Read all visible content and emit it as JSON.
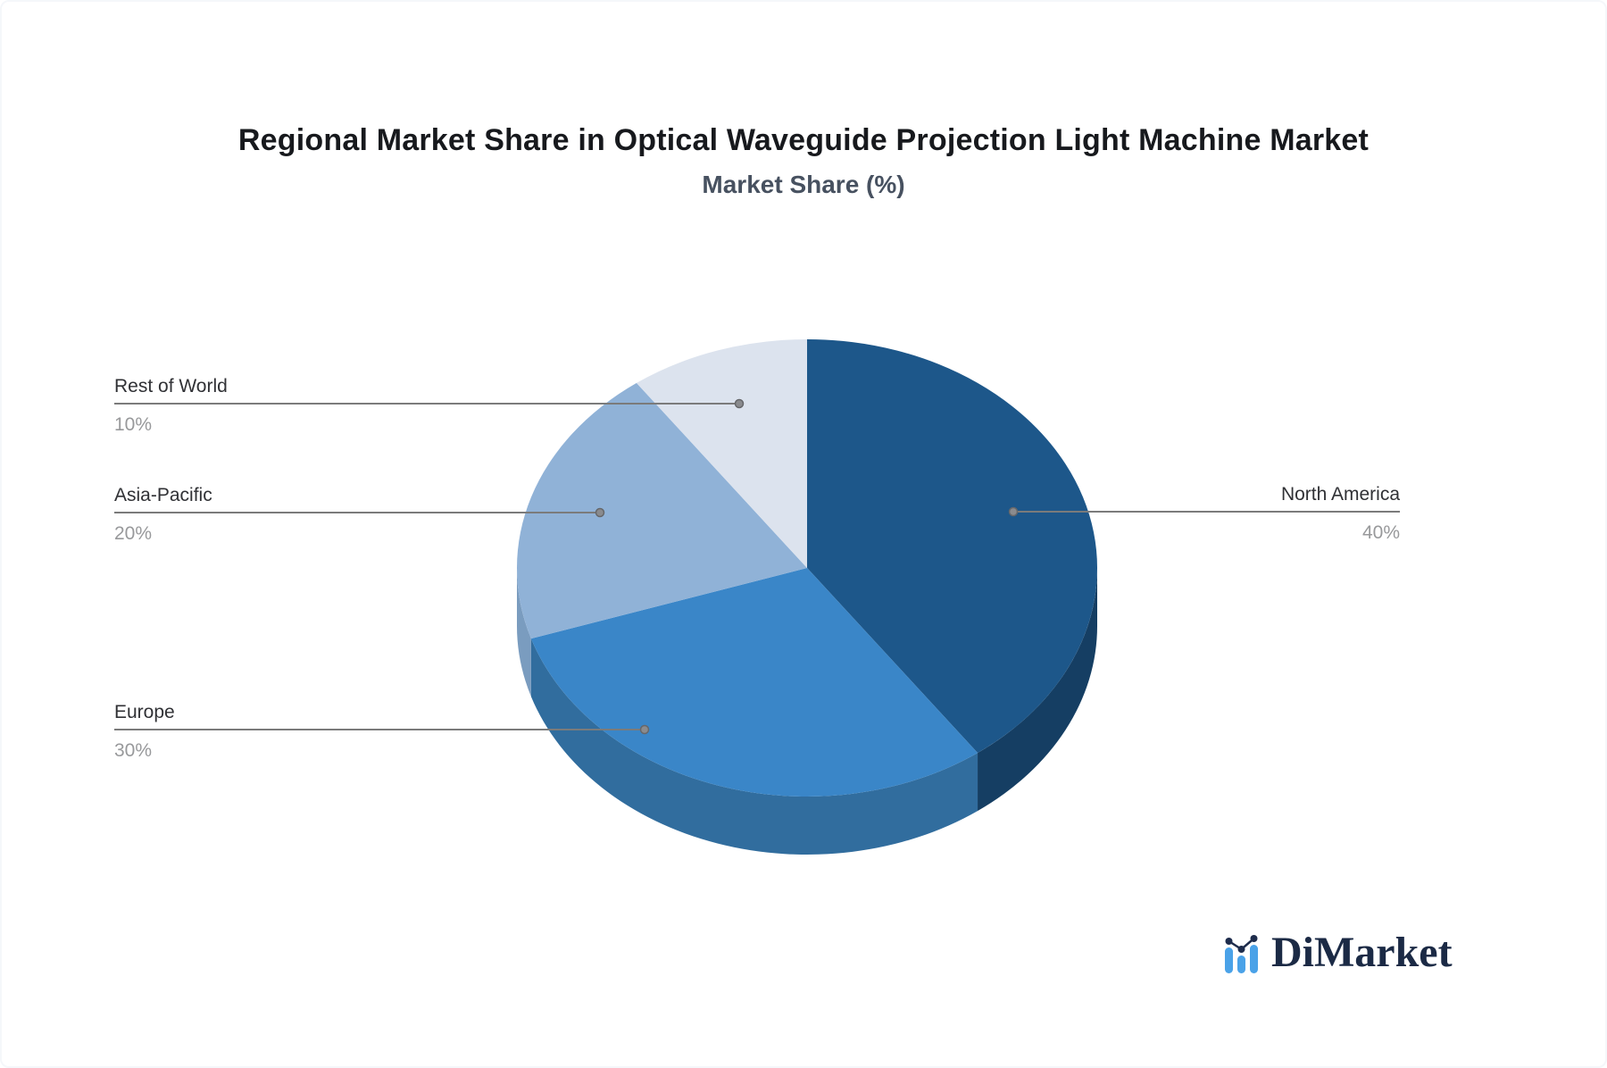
{
  "header": {
    "title": "Regional Market Share in Optical Waveguide Projection Light Machine Market",
    "subtitle": "Market Share (%)"
  },
  "chart_data": {
    "type": "pie",
    "style": "3d",
    "title": "Regional Market Share in Optical Waveguide Projection Light Machine Market",
    "subtitle": "Market Share (%)",
    "unit": "%",
    "start_angle_deg": 0,
    "direction": "clockwise",
    "label_style": "callout",
    "slices": [
      {
        "label": "North America",
        "value": 40,
        "value_text": "40%",
        "color_top": "#1d578a",
        "color_side": "#153e63"
      },
      {
        "label": "Europe",
        "value": 30,
        "value_text": "30%",
        "color_top": "#3a86c8",
        "color_side": "#316d9e"
      },
      {
        "label": "Asia-Pacific",
        "value": 20,
        "value_text": "20%",
        "color_top": "#90b2d7",
        "color_side": "#7a9cbf"
      },
      {
        "label": "Rest of World",
        "value": 10,
        "value_text": "10%",
        "color_top": "#dce3ee",
        "color_side": "#bac5d5"
      }
    ],
    "leader_line_color": "#7b7b7b",
    "leader_dot_fill": "#8a8b8e",
    "leader_dot_stroke": "#66676a",
    "label_color": "#303135",
    "value_color": "#98999b",
    "legend_position": "none",
    "grid": false
  },
  "branding": {
    "logo_text": "DiMarket",
    "logo_text_color": "#1b2a45",
    "icon_bar_color": "#4aa2e8",
    "icon_dot_color": "#1e2c4c"
  }
}
